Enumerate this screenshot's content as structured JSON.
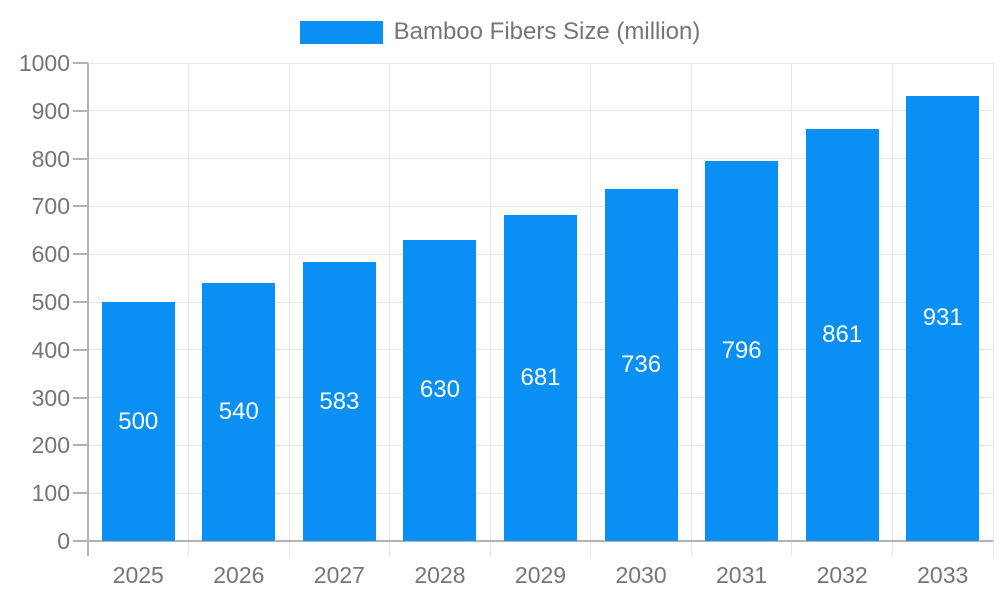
{
  "legend": {
    "label": "Bamboo Fibers Size (million)"
  },
  "chart_data": {
    "type": "bar",
    "title": "",
    "series_name": "Bamboo Fibers Size (million)",
    "categories": [
      "2025",
      "2026",
      "2027",
      "2028",
      "2029",
      "2030",
      "2031",
      "2032",
      "2033"
    ],
    "values": [
      500,
      540,
      583,
      630,
      681,
      736,
      796,
      861,
      931
    ],
    "xlabel": "",
    "ylabel": "",
    "ylim": [
      0,
      1000
    ],
    "ytick_step": 100,
    "yticks": [
      0,
      100,
      200,
      300,
      400,
      500,
      600,
      700,
      800,
      900,
      1000
    ],
    "grid": true,
    "legend_position": "top-center",
    "value_labels": "inside-center"
  },
  "colors": {
    "bar": "#0a90f5",
    "bar_label": "#ffffff",
    "axis_text": "#757575",
    "axis_line": "#b3b3b3",
    "gridline": "#e6e6e6",
    "background": "#ffffff"
  }
}
